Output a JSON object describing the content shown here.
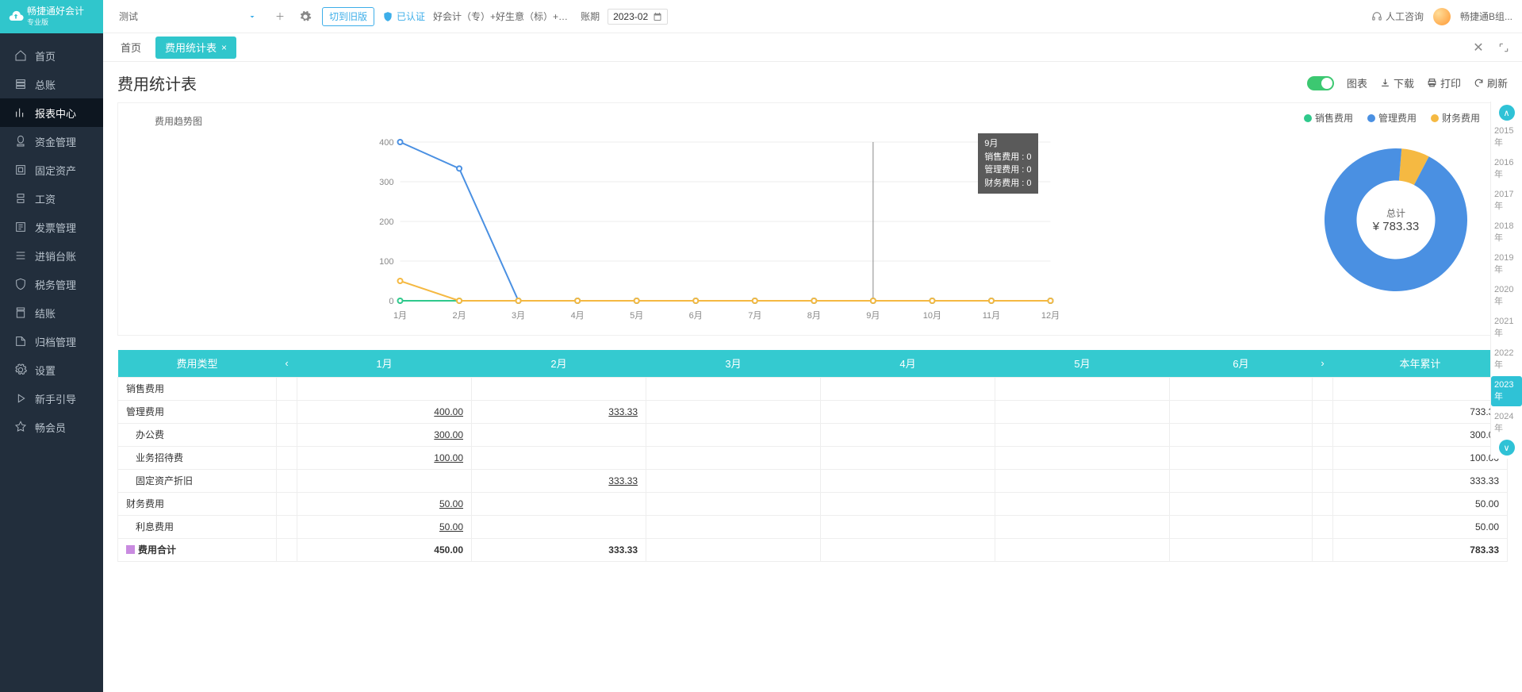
{
  "brand": {
    "name": "畅捷通好会计",
    "sub": "专业版"
  },
  "sidebar": {
    "items": [
      {
        "label": "首页"
      },
      {
        "label": "总账"
      },
      {
        "label": "报表中心"
      },
      {
        "label": "资金管理"
      },
      {
        "label": "固定资产"
      },
      {
        "label": "工资"
      },
      {
        "label": "发票管理"
      },
      {
        "label": "进销台账"
      },
      {
        "label": "税务管理"
      },
      {
        "label": "结账"
      },
      {
        "label": "归档管理"
      },
      {
        "label": "设置"
      },
      {
        "label": "新手引导"
      },
      {
        "label": "畅会员"
      }
    ],
    "activeIndex": 2
  },
  "topbar": {
    "orgName": "测试",
    "switchOld": "切到旧版",
    "certified": "已认证",
    "plan": "好会计（专）+好生意（标）+…",
    "periodLabel": "账期",
    "periodValue": "2023-02",
    "support": "人工咨询",
    "userName": "畅捷通B组..."
  },
  "tabs": {
    "items": [
      {
        "label": "首页",
        "closable": false
      },
      {
        "label": "费用统计表",
        "closable": true
      }
    ],
    "activeIndex": 1
  },
  "page": {
    "title": "费用统计表",
    "actions": {
      "chartLabel": "图表",
      "download": "下载",
      "print": "打印",
      "refresh": "刷新"
    }
  },
  "lineChart": {
    "title": "费用趋势图",
    "categories": [
      "1月",
      "2月",
      "3月",
      "4月",
      "5月",
      "6月",
      "7月",
      "8月",
      "9月",
      "10月",
      "11月",
      "12月"
    ],
    "series": [
      {
        "name": "销售费用",
        "color": "#2fc98c",
        "values": [
          0,
          0,
          0,
          0,
          0,
          0,
          0,
          0,
          0,
          0,
          0,
          0
        ]
      },
      {
        "name": "管理费用",
        "color": "#4a90e2",
        "values": [
          400,
          333.33,
          0,
          0,
          0,
          0,
          0,
          0,
          0,
          0,
          0,
          0
        ]
      },
      {
        "name": "财务费用",
        "color": "#f5b942",
        "values": [
          50,
          0,
          0,
          0,
          0,
          0,
          0,
          0,
          0,
          0,
          0,
          0
        ]
      }
    ],
    "ylim": [
      0,
      400
    ],
    "yticks": [
      0,
      100,
      200,
      300,
      400
    ],
    "gridColor": "#eeeeee",
    "axisColor": "#cccccc",
    "markerRadius": 3,
    "tooltip": {
      "month": "9月",
      "lines": [
        "销售费用 : 0",
        "管理费用 : 0",
        "财务费用 : 0"
      ],
      "bg": "#5a5a5a",
      "indexMonth": 8
    }
  },
  "donut": {
    "centerLabel": "总计",
    "centerValue": "¥ 783.33",
    "slices": [
      {
        "name": "财务费用",
        "value": 50,
        "color": "#f5b942"
      },
      {
        "name": "管理费用",
        "value": 733.33,
        "color": "#4a90e2"
      }
    ],
    "innerRatio": 0.55
  },
  "table": {
    "headers": [
      "费用类型",
      "1月",
      "2月",
      "3月",
      "4月",
      "5月",
      "6月",
      "本年累计"
    ],
    "rows": [
      {
        "name": "销售费用",
        "indent": 0,
        "cells": [
          "",
          "",
          "",
          "",
          "",
          ""
        ],
        "total": "",
        "underline": false
      },
      {
        "name": "管理费用",
        "indent": 0,
        "cells": [
          "400.00",
          "333.33",
          "",
          "",
          "",
          ""
        ],
        "total": "733.33",
        "underline": true
      },
      {
        "name": "办公费",
        "indent": 1,
        "cells": [
          "300.00",
          "",
          "",
          "",
          "",
          ""
        ],
        "total": "300.00",
        "underline": true
      },
      {
        "name": "业务招待费",
        "indent": 1,
        "cells": [
          "100.00",
          "",
          "",
          "",
          "",
          ""
        ],
        "total": "100.00",
        "underline": true
      },
      {
        "name": "固定资产折旧",
        "indent": 1,
        "cells": [
          "",
          "333.33",
          "",
          "",
          "",
          ""
        ],
        "total": "333.33",
        "underline": true
      },
      {
        "name": "财务费用",
        "indent": 0,
        "cells": [
          "50.00",
          "",
          "",
          "",
          "",
          ""
        ],
        "total": "50.00",
        "underline": true
      },
      {
        "name": "利息费用",
        "indent": 1,
        "cells": [
          "50.00",
          "",
          "",
          "",
          "",
          ""
        ],
        "total": "50.00",
        "underline": true
      }
    ],
    "totalRow": {
      "name": "费用合计",
      "cells": [
        "450.00",
        "333.33",
        "",
        "",
        "",
        ""
      ],
      "total": "783.33"
    }
  },
  "yearRail": {
    "years": [
      "2015年",
      "2016年",
      "2017年",
      "2018年",
      "2019年",
      "2020年",
      "2021年",
      "2022年",
      "2023年",
      "2024年"
    ],
    "activeIndex": 8
  }
}
